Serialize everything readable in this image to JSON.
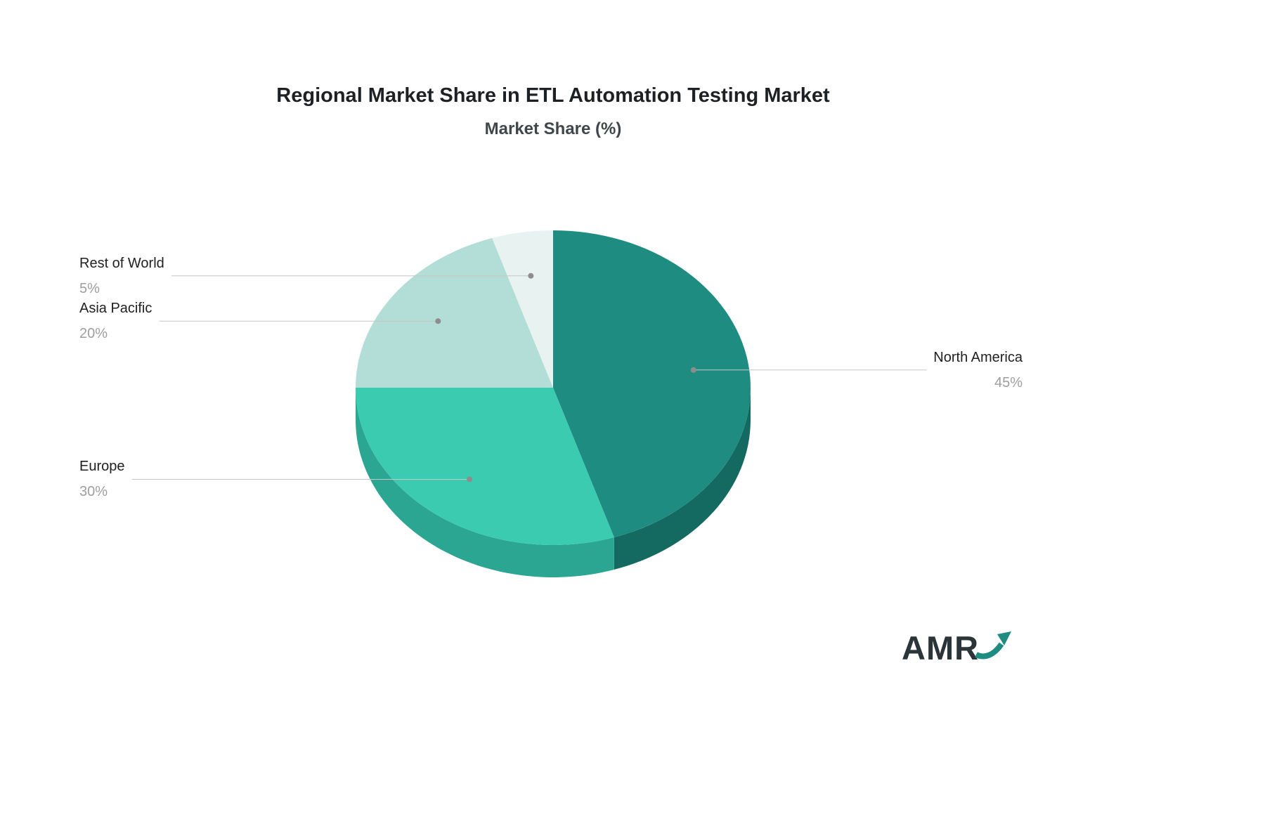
{
  "page": {
    "background": "#ffffff"
  },
  "chart_data": {
    "type": "pie",
    "title": "Regional Market Share in ETL Automation Testing Market",
    "subtitle": "Market Share (%)",
    "effect": "3d",
    "unit": "%",
    "start_angle_deg": -90,
    "direction": "clockwise",
    "slices": [
      {
        "label": "North America",
        "value": 45,
        "color": "#1E8C80",
        "side_color": "#146A60",
        "label_side": "right"
      },
      {
        "label": "Europe",
        "value": 30,
        "color": "#3BCBB1",
        "side_color": "#2BA692",
        "label_side": "left"
      },
      {
        "label": "Asia Pacific",
        "value": 20,
        "color": "#B2DED7",
        "side_color": "#93C9C0",
        "label_side": "left"
      },
      {
        "label": "Rest of World",
        "value": 5,
        "color": "#E8F3F1",
        "side_color": "#C6DFDB",
        "label_side": "left"
      }
    ],
    "leader_line_color": "#C6C6C6",
    "leader_dot_color": "#8D8D8D",
    "label_color": "#212121",
    "value_color": "#9E9E9E",
    "legend_position": "none",
    "grid": false
  },
  "logo": {
    "text": "AMR",
    "text_color": "#2A3439",
    "arrow_color": "#1E8C80"
  }
}
